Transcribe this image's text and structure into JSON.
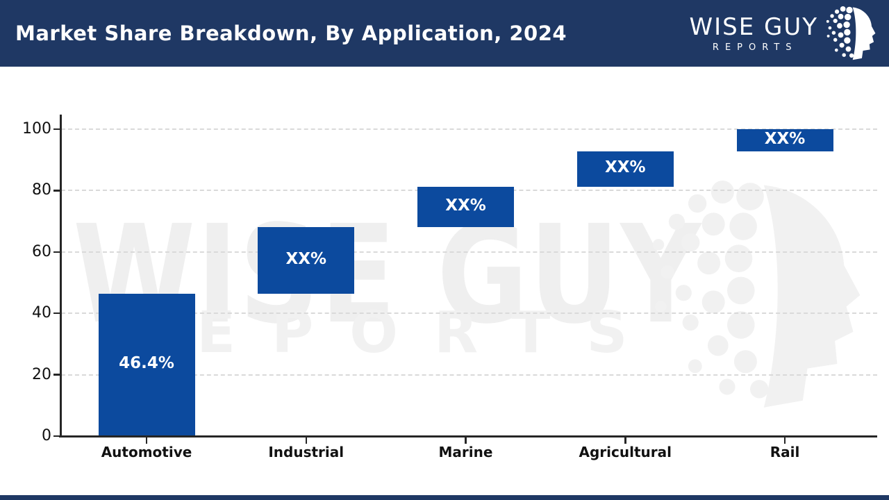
{
  "header": {
    "title": "Market Share Breakdown, By Application, 2024",
    "logo_line1": "WISE GUY",
    "logo_line2": "REPORTS",
    "bg_color": "#1f3864"
  },
  "watermark": {
    "line1": "WISE GUY",
    "line2": "REPORTS"
  },
  "footer": {
    "bar_color": "#1f3864"
  },
  "chart_data": {
    "type": "bar",
    "subtype": "waterfall",
    "title": "Market Share Breakdown, By Application, 2024",
    "categories": [
      "Automotive",
      "Industrial",
      "Marine",
      "Agricultural",
      "Rail"
    ],
    "segments": [
      {
        "category": "Automotive",
        "start": 0,
        "end": 46.4,
        "label": "46.4%"
      },
      {
        "category": "Industrial",
        "start": 46.4,
        "end": 68.1,
        "label": "XX%"
      },
      {
        "category": "Marine",
        "start": 68.1,
        "end": 81.2,
        "label": "XX%"
      },
      {
        "category": "Agricultural",
        "start": 81.2,
        "end": 92.8,
        "label": "XX%"
      },
      {
        "category": "Rail",
        "start": 92.8,
        "end": 100,
        "label": "XX%"
      }
    ],
    "y_ticks": [
      0,
      20,
      40,
      60,
      80,
      100
    ],
    "ylim": [
      0,
      105
    ],
    "grid": "horizontal-dashed",
    "legend": "none",
    "bar_color": "#0c4a9e",
    "bar_label_color": "#ffffff",
    "xlabel": "",
    "ylabel": ""
  }
}
